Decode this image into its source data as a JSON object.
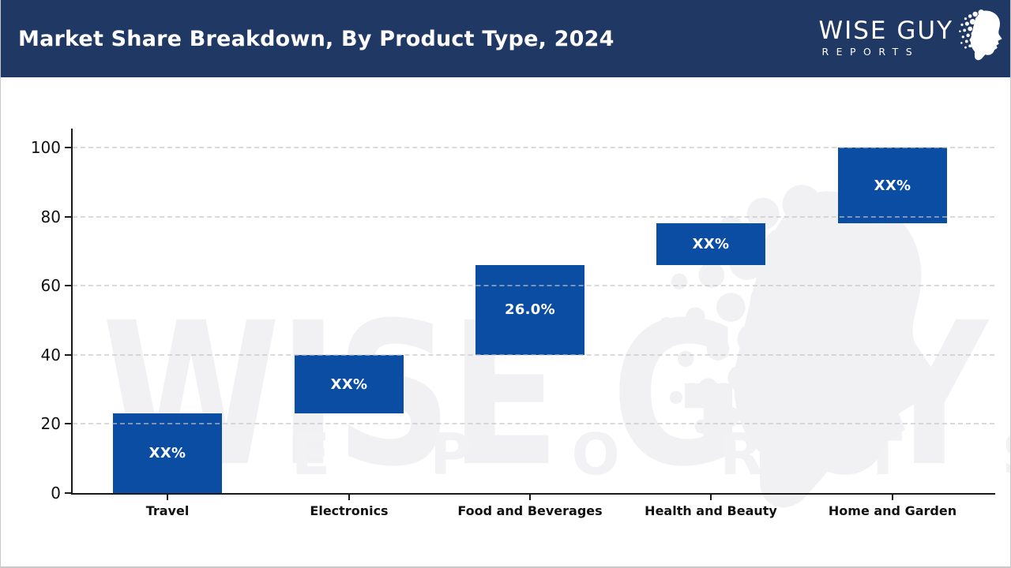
{
  "header": {
    "title": "Market Share Breakdown, By Product Type, 2024",
    "logo": {
      "line1": "WISE GUY",
      "line2": "REPORTS"
    }
  },
  "watermark": {
    "line1": "WISE GUY",
    "line2": "REPORTS"
  },
  "colors": {
    "header_bg": "#1f3864",
    "bar": "#0b4da2",
    "bar_label": "#ffffff",
    "grid": "#c4c4c4",
    "axis": "#1a1a1a",
    "watermark": "#f1f1f4"
  },
  "chart_data": {
    "type": "bar",
    "subtype": "waterfall",
    "title": "Market Share Breakdown, By Product Type, 2024",
    "categories": [
      "Travel",
      "Electronics",
      "Food and Beverages",
      "Health and Beauty",
      "Home and Garden"
    ],
    "bars": [
      {
        "category": "Travel",
        "start": 0,
        "end": 23,
        "label": "XX%"
      },
      {
        "category": "Electronics",
        "start": 23,
        "end": 40,
        "label": "XX%"
      },
      {
        "category": "Food and Beverages",
        "start": 40,
        "end": 66,
        "label": "26.0%"
      },
      {
        "category": "Health and Beauty",
        "start": 66,
        "end": 78,
        "label": "XX%"
      },
      {
        "category": "Home and Garden",
        "start": 78,
        "end": 100,
        "label": "XX%"
      }
    ],
    "yticks": [
      0,
      20,
      40,
      60,
      80,
      100
    ],
    "ylim": [
      0,
      105
    ],
    "xlabel": "",
    "ylabel": "",
    "grid": "horizontal-dashed-over-bars",
    "legend": "none",
    "bar_color": "#0b4da2",
    "label_color": "#ffffff"
  }
}
